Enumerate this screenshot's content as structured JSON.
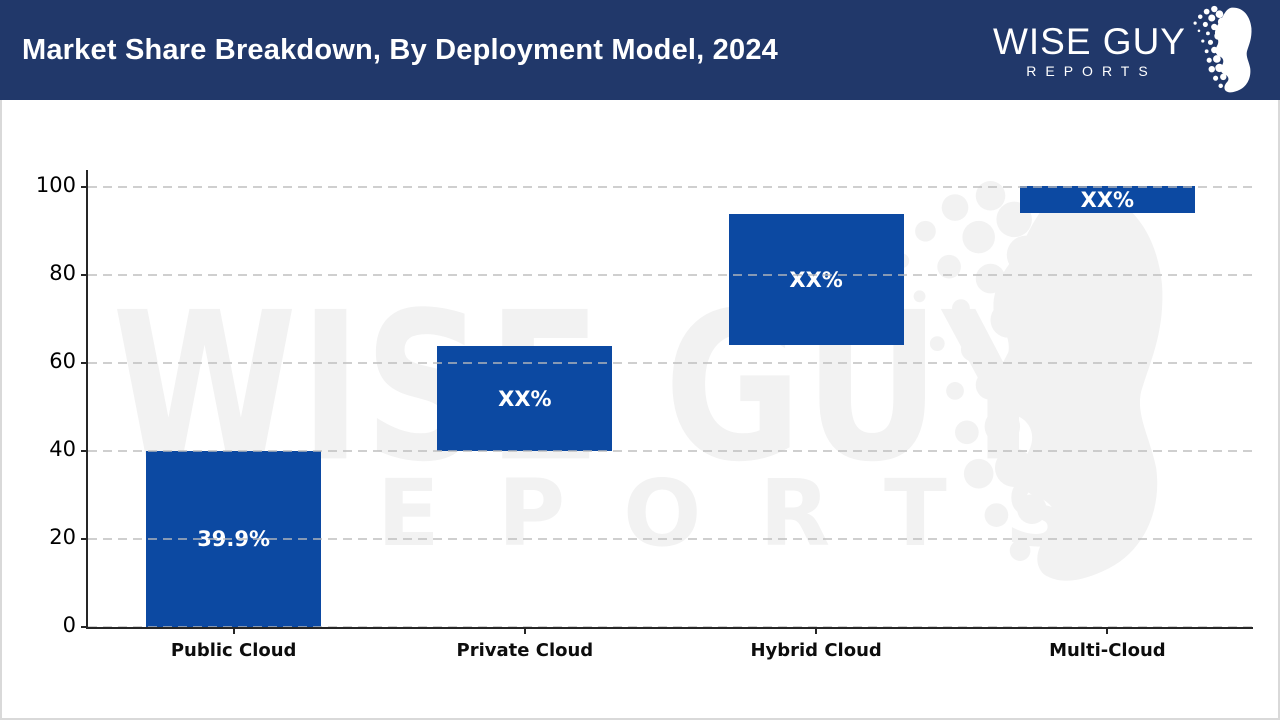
{
  "header": {
    "title": "Market Share Breakdown, By Deployment Model, 2024",
    "bg_color": "#21386a",
    "logo": {
      "line1": "WISE GUY",
      "line2": "REPORTS"
    }
  },
  "watermark": {
    "line1": "WISE GUY",
    "line2": "REPORTS"
  },
  "chart_data": {
    "type": "bar",
    "subtype": "waterfall",
    "title": "Market Share Breakdown, By Deployment Model, 2024",
    "categories": [
      "Public Cloud",
      "Private Cloud",
      "Hybrid Cloud",
      "Multi-Cloud"
    ],
    "segments": [
      {
        "category": "Public Cloud",
        "start": 0,
        "end": 39.9,
        "label": "39.9%"
      },
      {
        "category": "Private Cloud",
        "start": 40.0,
        "end": 63.8,
        "label": "XX%"
      },
      {
        "category": "Hybrid Cloud",
        "start": 64.0,
        "end": 93.8,
        "label": "XX%"
      },
      {
        "category": "Multi-Cloud",
        "start": 94.1,
        "end": 100.2,
        "label": "XX%"
      }
    ],
    "yticks": [
      0,
      20,
      40,
      60,
      80,
      100
    ],
    "ylim": [
      0,
      100
    ],
    "xlabel": "",
    "ylabel": "",
    "grid": "dashed horizontal gridlines",
    "legend": "none",
    "bar_color": "#0c49a2",
    "bar_label_color": "#ffffff",
    "axis_color": "#262626"
  }
}
